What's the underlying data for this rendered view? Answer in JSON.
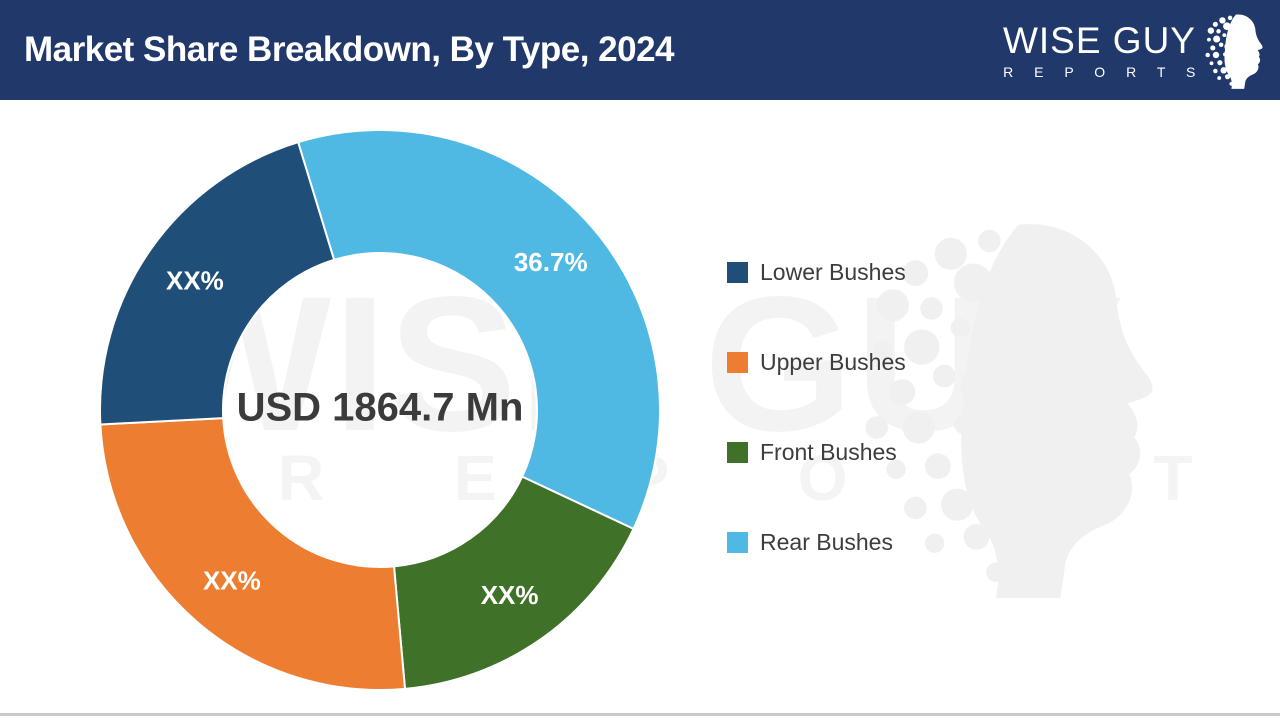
{
  "header": {
    "title": "Market Share Breakdown, By Type, 2024",
    "logo": {
      "name": "WISE GUY",
      "subtitle": "R E P O R T S"
    }
  },
  "watermark": {
    "line1": "WISE GUY",
    "line2": "R E P O R T S"
  },
  "chart_data": {
    "type": "donut",
    "title": "Market Share Breakdown, By Type, 2024",
    "center_label": "USD 1864.7 Mn",
    "start_angle_deg": 343,
    "outer_radius": 280,
    "inner_radius": 157,
    "label_radius": 226,
    "legend_position": "right",
    "segments": [
      {
        "name": "Rear Bushes",
        "display_value": "36.7%",
        "value_pct": 36.7,
        "color": "#4fb8e3"
      },
      {
        "name": "Front Bushes",
        "display_value": "XX%",
        "value_pct": 16.6,
        "color": "#3f7128"
      },
      {
        "name": "Upper Bushes",
        "display_value": "XX%",
        "value_pct": 25.6,
        "color": "#ed7d31"
      },
      {
        "name": "Lower Bushes",
        "display_value": "XX%",
        "value_pct": 21.1,
        "color": "#1f4e79"
      }
    ],
    "legend_items": [
      {
        "label": "Lower Bushes",
        "color": "#1f4e79"
      },
      {
        "label": "Upper Bushes",
        "color": "#ed7d31"
      },
      {
        "label": "Front Bushes",
        "color": "#3f7128"
      },
      {
        "label": "Rear Bushes",
        "color": "#4fb8e3"
      }
    ]
  },
  "colors": {
    "header_bg": "#21386b",
    "title_text": "#ffffff",
    "center_text": "#3b3b3b",
    "legend_text": "#3d3d3d",
    "watermark": "#f3f3f3",
    "footer_rule": "#c9c9c9"
  }
}
